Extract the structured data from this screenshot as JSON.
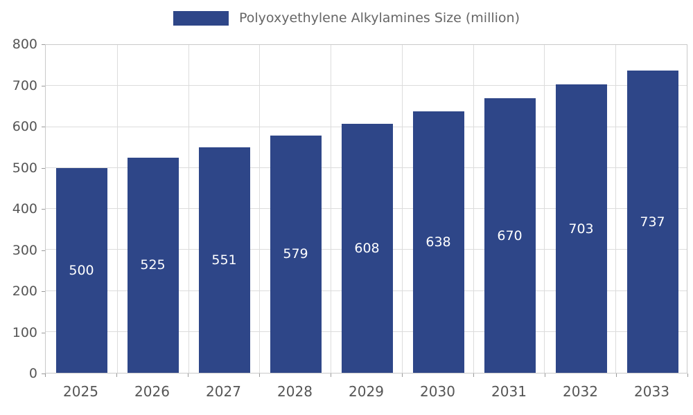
{
  "chart_data": {
    "type": "bar",
    "title": "Polyoxyethylene Alkylamines Size (million)",
    "categories": [
      "2025",
      "2026",
      "2027",
      "2028",
      "2029",
      "2030",
      "2031",
      "2032",
      "2033"
    ],
    "values": [
      500,
      525,
      551,
      579,
      608,
      638,
      670,
      703,
      737
    ],
    "xlabel": "",
    "ylabel": "",
    "ylim": [
      0,
      800
    ],
    "ytick_step": 100,
    "grid": true,
    "legend_position": "top-center",
    "colors": {
      "bar": "#2e4688",
      "bar_value_label": "#ffffff",
      "axis_text": "#555555",
      "legend_text": "#666666",
      "gridline": "#dcdcdc",
      "plot_border": "#c9c9c9",
      "background": "#ffffff"
    }
  }
}
